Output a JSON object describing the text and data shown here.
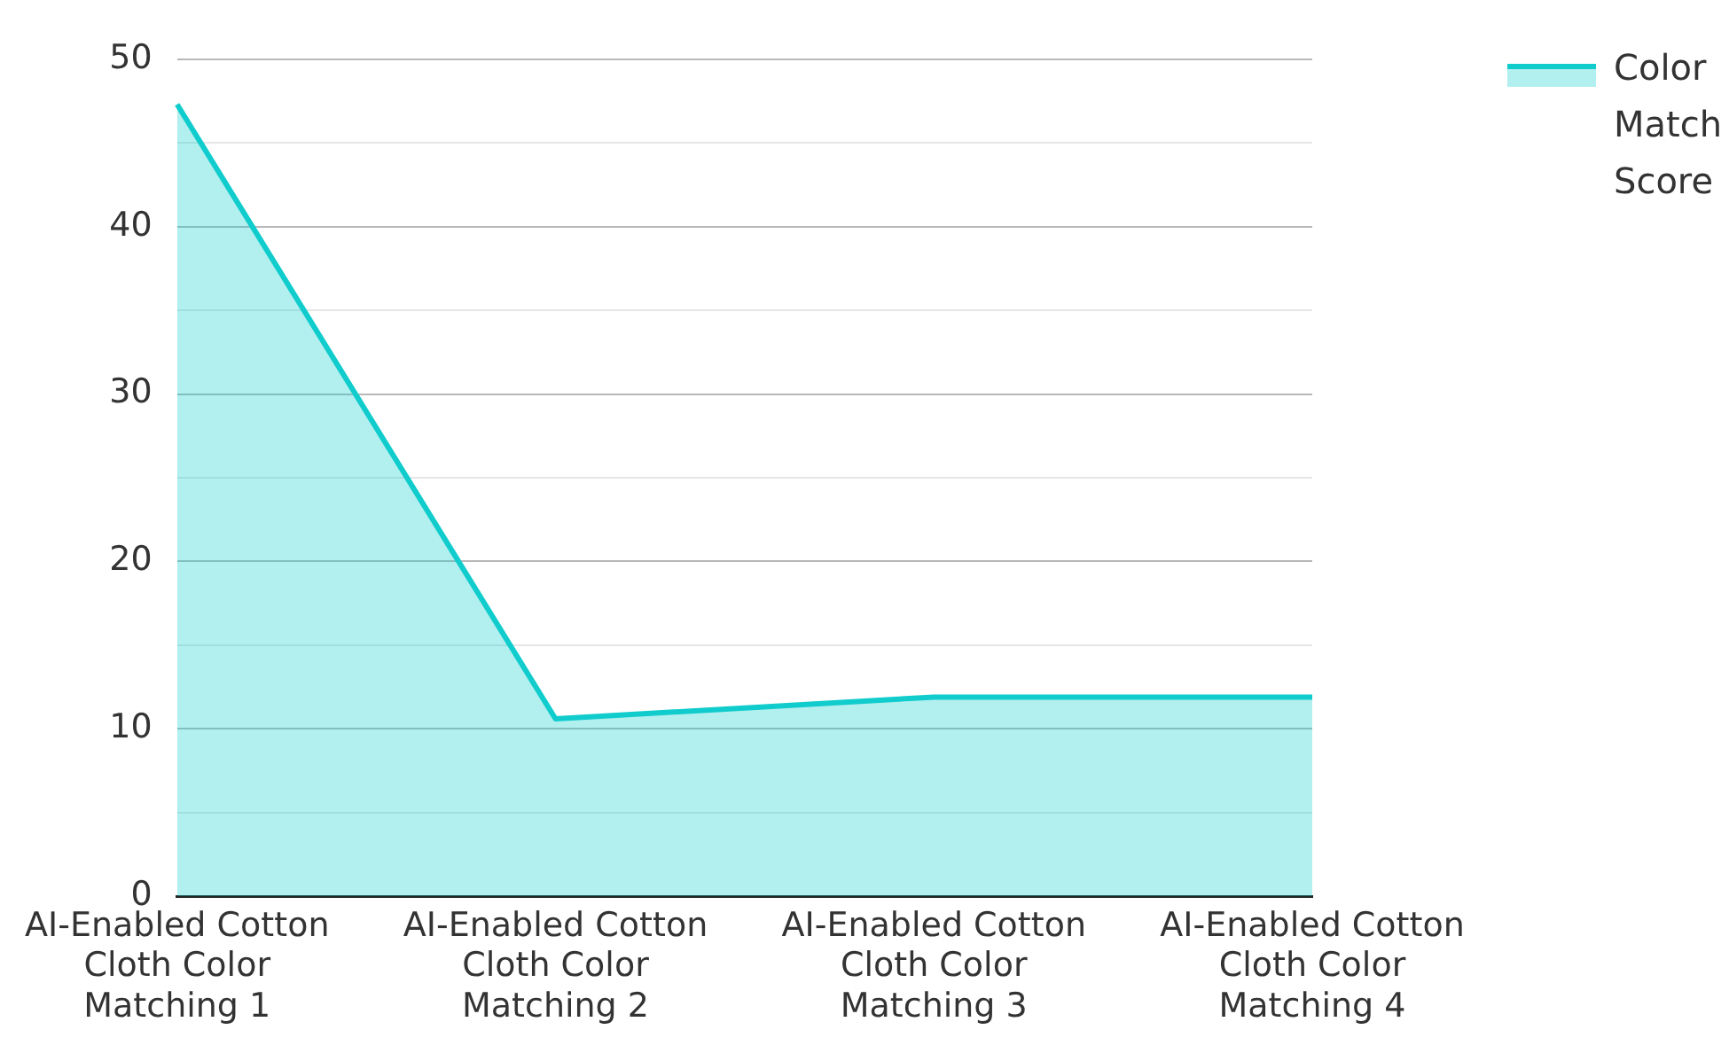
{
  "chart_data": {
    "type": "area",
    "categories": [
      "AI-Enabled Cotton Cloth Color Matching 1",
      "AI-Enabled Cotton Cloth Color Matching 2",
      "AI-Enabled Cotton Cloth Color Matching 3",
      "AI-Enabled Cotton Cloth Color Matching 4"
    ],
    "series": [
      {
        "name": "Color Match Score",
        "color": "#11cccc",
        "values": [
          47.3,
          10.6,
          11.9,
          11.9
        ]
      }
    ],
    "ylim": [
      0,
      50
    ],
    "yticks": [
      0,
      {
        "value": 5,
        "label": null
      },
      10,
      {
        "value": 15,
        "label": null
      },
      20,
      {
        "value": 25,
        "label": null
      },
      30,
      {
        "value": 35,
        "label": null
      },
      40,
      {
        "value": 45,
        "label": null
      },
      50
    ],
    "grid": "y",
    "legend": "top right"
  }
}
